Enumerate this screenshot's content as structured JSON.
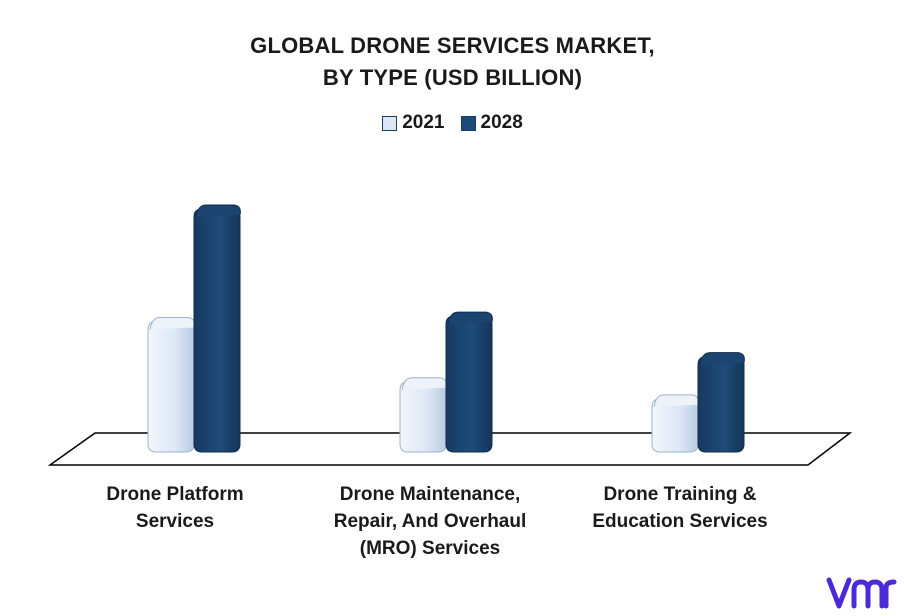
{
  "chart_data": {
    "type": "bar",
    "title": "GLOBAL DRONE SERVICES MARKET,\nBY TYPE (USD BILLION)",
    "categories": [
      "Drone Platform\nServices",
      "Drone Maintenance,\nRepair, And Overhaul\n(MRO) Services",
      "Drone Training &\nEducation Services"
    ],
    "series": [
      {
        "name": "2021",
        "values": [
          14.5,
          7.8,
          5.9
        ],
        "color": "#dce7f5"
      },
      {
        "name": "2028",
        "values": [
          27.0,
          15.1,
          10.6
        ],
        "color": "#1e4a78"
      }
    ],
    "ylim": [
      0,
      30
    ],
    "grid": false,
    "legend_position": "top-center",
    "style": "3d-cylinder"
  },
  "legend": {
    "items": [
      "2021",
      "2028"
    ]
  },
  "logo": {
    "icon": "vmr-logo-icon",
    "color": "#4b2bd8"
  }
}
